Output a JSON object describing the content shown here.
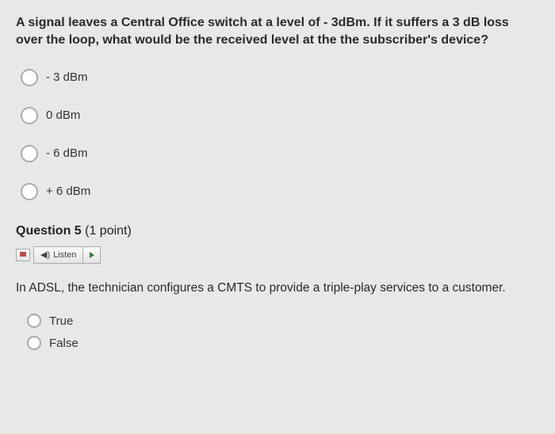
{
  "colors": {
    "page_bg": "#e8e8e6",
    "text_primary": "#2a2a2a",
    "text_secondary": "#333333",
    "radio_border": "#aaaaaa",
    "button_border": "#aaaaaa",
    "play_triangle": "#3a7a3a",
    "flag_fill": "#b84e4e"
  },
  "q4": {
    "prompt": "A signal leaves a Central Office switch at a level of - 3dBm. If it suffers a 3 dB loss over the loop, what would be the received level at the the subscriber's device?",
    "options": [
      {
        "label": "- 3 dBm"
      },
      {
        "label": "0 dBm"
      },
      {
        "label": "- 6 dBm"
      },
      {
        "label": "+ 6 dBm"
      }
    ]
  },
  "q5": {
    "header_num": "Question 5",
    "header_points": " (1 point)",
    "listen_label": "Listen",
    "prompt": "In ADSL, the technician configures a CMTS to provide a triple-play services to a customer.",
    "options": [
      {
        "label": "True"
      },
      {
        "label": "False"
      }
    ]
  }
}
